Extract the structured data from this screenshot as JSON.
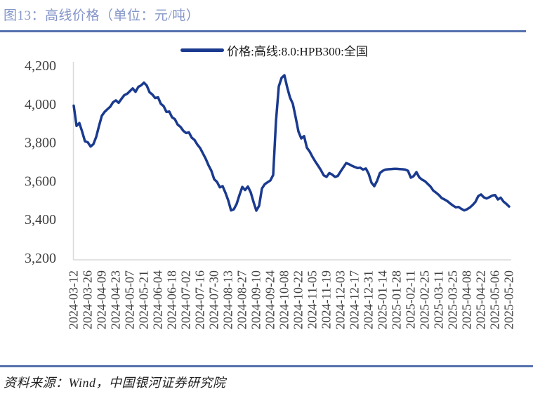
{
  "header": {
    "title": "图13：高线价格（单位：元/吨）"
  },
  "legend": {
    "label": "价格:高线:8.0:HPB300:全国"
  },
  "footer": {
    "source": "资料来源：Wind，中国银河证券研究院"
  },
  "colors": {
    "line": "#1A3A8F",
    "rule": "#5470AD",
    "title_text": "#8495C8",
    "axis": "#D9D9D9",
    "tick_text": "#404040",
    "legend_text": "#1a1a1a"
  },
  "chart_data": {
    "type": "line",
    "title": "图13：高线价格（单位：元/吨）",
    "unit": "元/吨",
    "series_name": "价格:高线:8.0:HPB300:全国",
    "grid": false,
    "legend_position": "top-center",
    "ylim": [
      3200,
      4200
    ],
    "y_ticks": [
      4200,
      4000,
      3800,
      3600,
      3400,
      3200
    ],
    "y_tick_labels": [
      "4,200",
      "4,000",
      "3,800",
      "3,600",
      "3,400",
      "3,200"
    ],
    "x_tick_labels": [
      "2024-03-12",
      "2024-03-26",
      "2024-04-09",
      "2024-04-23",
      "2024-05-07",
      "2024-05-21",
      "2024-06-04",
      "2024-06-18",
      "2024-07-02",
      "2024-07-16",
      "2024-07-30",
      "2024-08-13",
      "2024-08-27",
      "2024-09-10",
      "2024-09-24",
      "2024-10-08",
      "2024-10-22",
      "2024-11-05",
      "2024-11-19",
      "2024-12-03",
      "2024-12-17",
      "2024-12-31",
      "2025-01-14",
      "2025-01-28",
      "2025-02-11",
      "2025-02-25",
      "2025-03-11",
      "2025-03-25",
      "2025-04-08",
      "2025-04-22",
      "2025-05-06",
      "2025-05-20"
    ],
    "points_per_tick": 5,
    "values": [
      3990,
      3885,
      3900,
      3855,
      3805,
      3800,
      3778,
      3790,
      3828,
      3885,
      3938,
      3958,
      3972,
      3985,
      4008,
      4018,
      4005,
      4026,
      4045,
      4052,
      4066,
      4080,
      4062,
      4088,
      4096,
      4110,
      4095,
      4060,
      4048,
      4030,
      4034,
      4000,
      3988,
      3958,
      3960,
      3930,
      3920,
      3892,
      3880,
      3860,
      3848,
      3852,
      3824,
      3812,
      3788,
      3770,
      3742,
      3714,
      3680,
      3652,
      3608,
      3594,
      3566,
      3572,
      3538,
      3498,
      3446,
      3452,
      3480,
      3526,
      3568,
      3552,
      3570,
      3540,
      3490,
      3445,
      3470,
      3560,
      3582,
      3592,
      3602,
      3630,
      3910,
      4090,
      4135,
      4148,
      4085,
      4032,
      4000,
      3930,
      3856,
      3820,
      3832,
      3772,
      3752,
      3724,
      3700,
      3678,
      3655,
      3628,
      3620,
      3640,
      3632,
      3620,
      3625,
      3648,
      3670,
      3692,
      3686,
      3678,
      3672,
      3666,
      3668,
      3658,
      3664,
      3636,
      3590,
      3572,
      3600,
      3640,
      3652,
      3658,
      3660,
      3661,
      3662,
      3662,
      3661,
      3660,
      3658,
      3652,
      3616,
      3624,
      3645,
      3618,
      3606,
      3598,
      3584,
      3570,
      3549,
      3538,
      3526,
      3510,
      3503,
      3494,
      3482,
      3471,
      3462,
      3464,
      3454,
      3446,
      3452,
      3461,
      3474,
      3490,
      3520,
      3529,
      3514,
      3508,
      3515,
      3523,
      3526,
      3503,
      3512,
      3492,
      3480,
      3466
    ]
  }
}
